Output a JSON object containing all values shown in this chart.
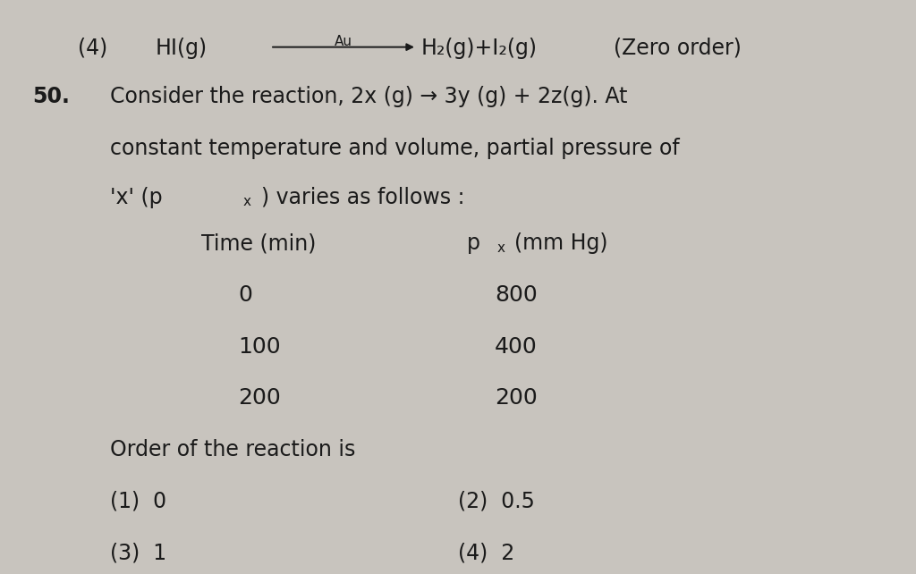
{
  "bg_color": "#c8c4be",
  "page_color": "#e8e6e2",
  "text_color": "#1a1a1a",
  "figsize": [
    10.24,
    6.42
  ],
  "dpi": 100,
  "line4_label": "(4)",
  "line4_reactant": "HI(g)",
  "line4_catalyst": "Au",
  "line4_products": "H₂(g)+I₂(g)",
  "line4_note": "(Zero order)",
  "q50_number": "50.",
  "q50_line1": "Consider the reaction, 2x (g) → 3y (g) + 2z(g). At",
  "q50_line2": "constant temperature and volume, partial pressure of",
  "q50_line3a": "'x' (p",
  "q50_line3b": "x",
  "q50_line3c": ") varies as follows :",
  "col1_header": "Time (min)",
  "col2_header_a": "p",
  "col2_header_b": "x",
  "col2_header_c": "(mm Hg)",
  "table_data": [
    [
      "0",
      "800"
    ],
    [
      "100",
      "400"
    ],
    [
      "200",
      "200"
    ]
  ],
  "order_line": "Order of the reaction is",
  "opt1": "(1)  0",
  "opt2": "(2)  0.5",
  "opt3": "(3)  1",
  "opt4": "(4)  2"
}
